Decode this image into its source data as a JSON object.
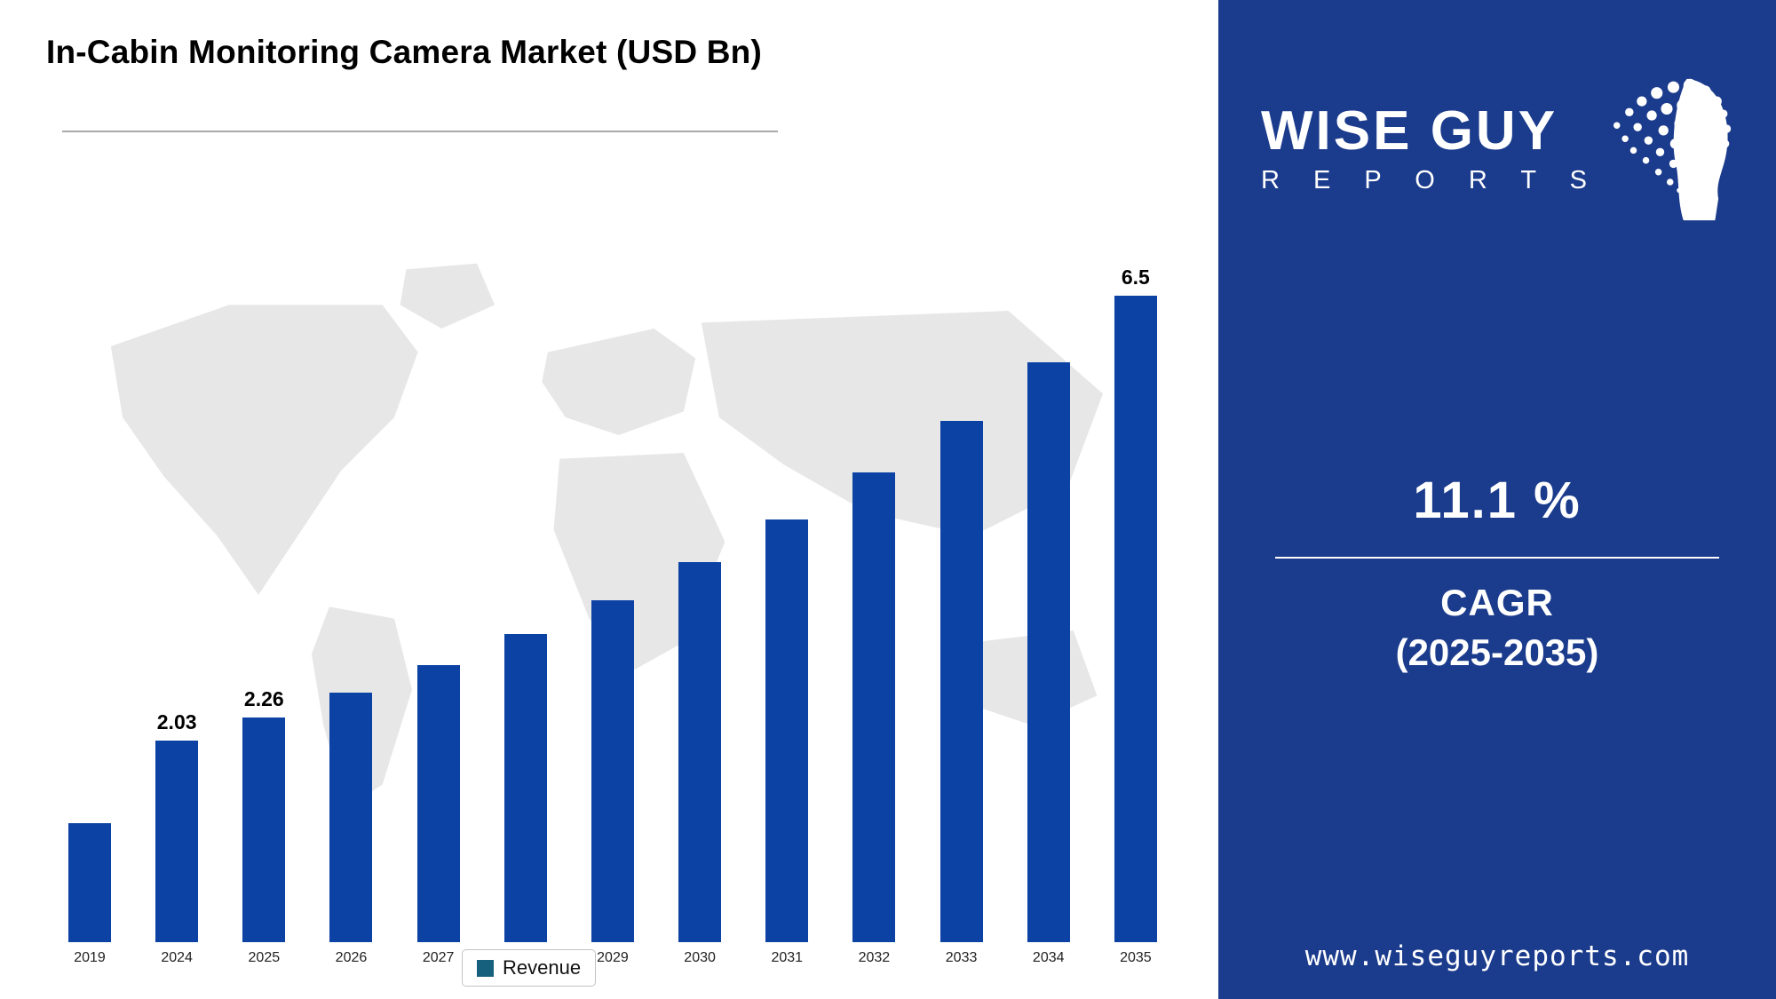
{
  "title": "In-Cabin Monitoring Camera Market (USD Bn)",
  "legend": {
    "label": "Revenue",
    "color": "#17607d"
  },
  "chart_data": {
    "type": "bar",
    "title": "In-Cabin Monitoring Camera Market (USD Bn)",
    "categories": [
      "2019",
      "2024",
      "2025",
      "2026",
      "2027",
      "2028",
      "2029",
      "2030",
      "2031",
      "2032",
      "2033",
      "2034",
      "2035"
    ],
    "values": [
      1.2,
      2.03,
      2.26,
      2.51,
      2.79,
      3.1,
      3.44,
      3.82,
      4.25,
      4.72,
      5.24,
      5.83,
      6.5
    ],
    "data_labels": [
      null,
      "2.03",
      "2.26",
      null,
      null,
      null,
      null,
      null,
      null,
      null,
      null,
      null,
      "6.5"
    ],
    "series_name": "Revenue",
    "bar_color": "#0b42a4",
    "xlabel": "",
    "ylabel": "",
    "ylim": [
      0,
      7
    ],
    "grid": false,
    "legend_position": "bottom"
  },
  "sidebar": {
    "background": "#1b3b8c",
    "logo_line1": "WISE GUY",
    "logo_line2": "R E P O R T S",
    "cagr_value": "11.1 %",
    "cagr_label": "CAGR",
    "cagr_period": "(2025-2035)",
    "website": "www.wiseguyreports.com"
  }
}
